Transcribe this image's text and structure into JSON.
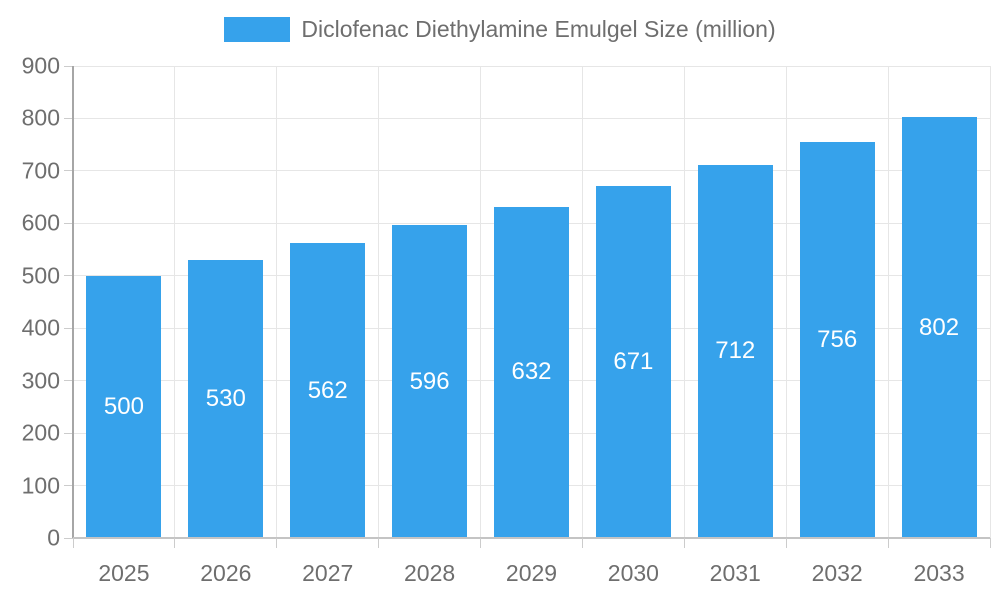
{
  "legend": {
    "label": "Diclofenac Diethylamine Emulgel Size (million)"
  },
  "colors": {
    "bar": "#36A2EB",
    "axis_text": "#6e6e6e",
    "gridline": "#e6e6e6",
    "tick": "#cccccc",
    "y_axis_line": "#a6a6a6",
    "baseline": "#c4c4c4",
    "bar_label_text": "#ffffff",
    "background": "#ffffff"
  },
  "chart_data": {
    "type": "bar",
    "title": "Diclofenac Diethylamine Emulgel Size (million)",
    "categories": [
      "2025",
      "2026",
      "2027",
      "2028",
      "2029",
      "2030",
      "2031",
      "2032",
      "2033"
    ],
    "values": [
      500,
      530,
      562,
      596,
      632,
      671,
      712,
      756,
      802
    ],
    "xlabel": "",
    "ylabel": "",
    "ylim": [
      0,
      900
    ],
    "ytick_step": 100,
    "grid": true,
    "legend_position": "top",
    "value_labels": "inside-center"
  }
}
